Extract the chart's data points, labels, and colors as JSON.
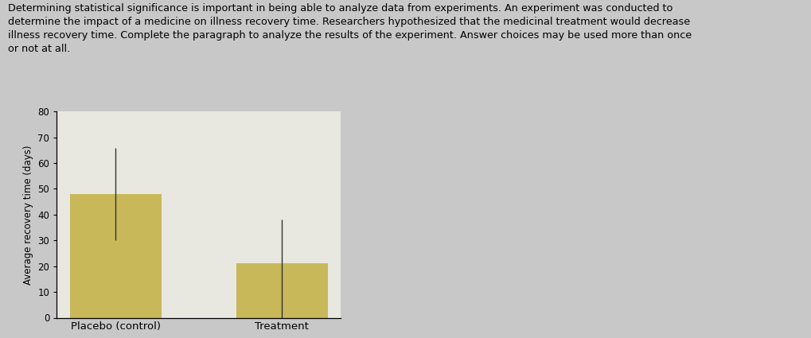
{
  "categories": [
    "Placebo (control)",
    "Treatment"
  ],
  "values": [
    48,
    21
  ],
  "error_upper": [
    18,
    17
  ],
  "error_lower": [
    18,
    21
  ],
  "bar_color": "#C8B85A",
  "bar_width": 0.55,
  "ylim": [
    0,
    80
  ],
  "yticks": [
    0,
    10,
    20,
    30,
    40,
    50,
    60,
    70,
    80
  ],
  "ylabel": "Average recovery time (days)",
  "fig_bg_color": "#C8C8C8",
  "chart_bg_color": "#E8E8E0",
  "title_text": "Determining statistical significance is important in being able to analyze data from experiments. An experiment was conducted to\ndetermine the impact of a medicine on illness recovery time. Researchers hypothesized that the medicinal treatment would decrease\nillness recovery time. Complete the paragraph to analyze the results of the experiment. Answer choices may be used more than once\nor not at all.",
  "title_fontsize": 9.2,
  "ylabel_fontsize": 8.5,
  "tick_fontsize": 8.5,
  "xtick_fontsize": 9.5
}
